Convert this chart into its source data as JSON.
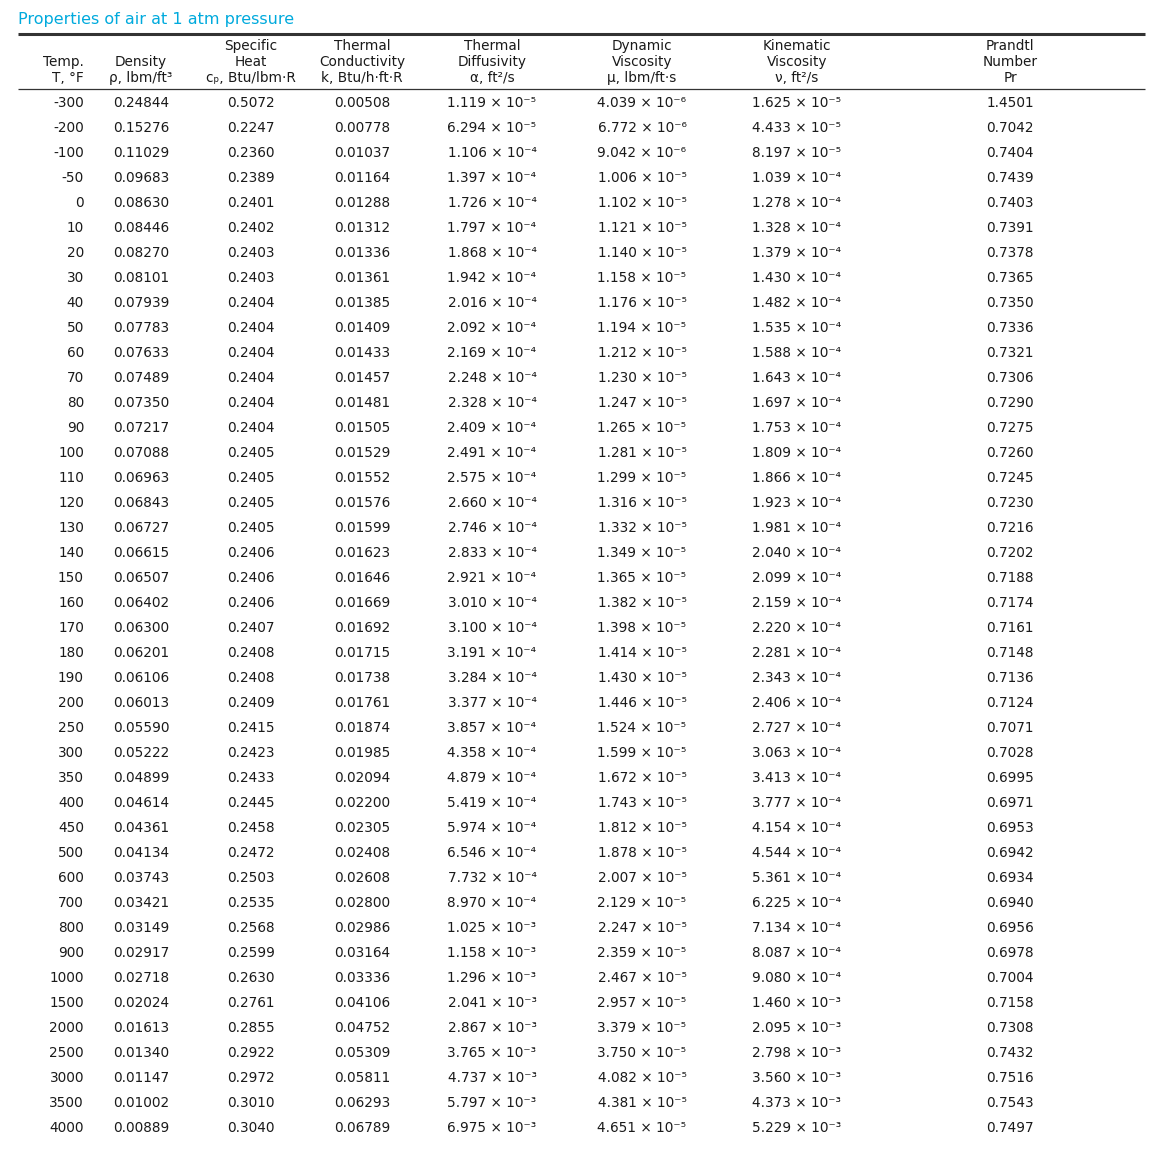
{
  "title": "Properties of air at 1 atm pressure",
  "title_color": "#00AADD",
  "col_headers_line1": [
    "",
    "",
    "Specific",
    "Thermal",
    "Thermal",
    "Dynamic",
    "Kinematic",
    "Prandtl"
  ],
  "col_headers_line2": [
    "Temp.",
    "Density",
    "Heat",
    "Conductivity",
    "Diffusivity",
    "Viscosity",
    "Viscosity",
    "Number"
  ],
  "col_headers_line3": [
    "T, °F",
    "ρ, lbm/ft³",
    "cₚ, Btu/lbm·R",
    "k, Btu/h·ft·R",
    "α, ft²/s",
    "μ, lbm/ft·s",
    "ν, ft²/s",
    "Pr"
  ],
  "rows": [
    [
      "-300",
      "0.24844",
      "0.5072",
      "0.00508",
      "1.119 × 10⁻⁵",
      "4.039 × 10⁻⁶",
      "1.625 × 10⁻⁵",
      "1.4501"
    ],
    [
      "-200",
      "0.15276",
      "0.2247",
      "0.00778",
      "6.294 × 10⁻⁵",
      "6.772 × 10⁻⁶",
      "4.433 × 10⁻⁵",
      "0.7042"
    ],
    [
      "-100",
      "0.11029",
      "0.2360",
      "0.01037",
      "1.106 × 10⁻⁴",
      "9.042 × 10⁻⁶",
      "8.197 × 10⁻⁵",
      "0.7404"
    ],
    [
      "-50",
      "0.09683",
      "0.2389",
      "0.01164",
      "1.397 × 10⁻⁴",
      "1.006 × 10⁻⁵",
      "1.039 × 10⁻⁴",
      "0.7439"
    ],
    [
      "0",
      "0.08630",
      "0.2401",
      "0.01288",
      "1.726 × 10⁻⁴",
      "1.102 × 10⁻⁵",
      "1.278 × 10⁻⁴",
      "0.7403"
    ],
    [
      "10",
      "0.08446",
      "0.2402",
      "0.01312",
      "1.797 × 10⁻⁴",
      "1.121 × 10⁻⁵",
      "1.328 × 10⁻⁴",
      "0.7391"
    ],
    [
      "20",
      "0.08270",
      "0.2403",
      "0.01336",
      "1.868 × 10⁻⁴",
      "1.140 × 10⁻⁵",
      "1.379 × 10⁻⁴",
      "0.7378"
    ],
    [
      "30",
      "0.08101",
      "0.2403",
      "0.01361",
      "1.942 × 10⁻⁴",
      "1.158 × 10⁻⁵",
      "1.430 × 10⁻⁴",
      "0.7365"
    ],
    [
      "40",
      "0.07939",
      "0.2404",
      "0.01385",
      "2.016 × 10⁻⁴",
      "1.176 × 10⁻⁵",
      "1.482 × 10⁻⁴",
      "0.7350"
    ],
    [
      "50",
      "0.07783",
      "0.2404",
      "0.01409",
      "2.092 × 10⁻⁴",
      "1.194 × 10⁻⁵",
      "1.535 × 10⁻⁴",
      "0.7336"
    ],
    [
      "60",
      "0.07633",
      "0.2404",
      "0.01433",
      "2.169 × 10⁻⁴",
      "1.212 × 10⁻⁵",
      "1.588 × 10⁻⁴",
      "0.7321"
    ],
    [
      "70",
      "0.07489",
      "0.2404",
      "0.01457",
      "2.248 × 10⁻⁴",
      "1.230 × 10⁻⁵",
      "1.643 × 10⁻⁴",
      "0.7306"
    ],
    [
      "80",
      "0.07350",
      "0.2404",
      "0.01481",
      "2.328 × 10⁻⁴",
      "1.247 × 10⁻⁵",
      "1.697 × 10⁻⁴",
      "0.7290"
    ],
    [
      "90",
      "0.07217",
      "0.2404",
      "0.01505",
      "2.409 × 10⁻⁴",
      "1.265 × 10⁻⁵",
      "1.753 × 10⁻⁴",
      "0.7275"
    ],
    [
      "100",
      "0.07088",
      "0.2405",
      "0.01529",
      "2.491 × 10⁻⁴",
      "1.281 × 10⁻⁵",
      "1.809 × 10⁻⁴",
      "0.7260"
    ],
    [
      "110",
      "0.06963",
      "0.2405",
      "0.01552",
      "2.575 × 10⁻⁴",
      "1.299 × 10⁻⁵",
      "1.866 × 10⁻⁴",
      "0.7245"
    ],
    [
      "120",
      "0.06843",
      "0.2405",
      "0.01576",
      "2.660 × 10⁻⁴",
      "1.316 × 10⁻⁵",
      "1.923 × 10⁻⁴",
      "0.7230"
    ],
    [
      "130",
      "0.06727",
      "0.2405",
      "0.01599",
      "2.746 × 10⁻⁴",
      "1.332 × 10⁻⁵",
      "1.981 × 10⁻⁴",
      "0.7216"
    ],
    [
      "140",
      "0.06615",
      "0.2406",
      "0.01623",
      "2.833 × 10⁻⁴",
      "1.349 × 10⁻⁵",
      "2.040 × 10⁻⁴",
      "0.7202"
    ],
    [
      "150",
      "0.06507",
      "0.2406",
      "0.01646",
      "2.921 × 10⁻⁴",
      "1.365 × 10⁻⁵",
      "2.099 × 10⁻⁴",
      "0.7188"
    ],
    [
      "160",
      "0.06402",
      "0.2406",
      "0.01669",
      "3.010 × 10⁻⁴",
      "1.382 × 10⁻⁵",
      "2.159 × 10⁻⁴",
      "0.7174"
    ],
    [
      "170",
      "0.06300",
      "0.2407",
      "0.01692",
      "3.100 × 10⁻⁴",
      "1.398 × 10⁻⁵",
      "2.220 × 10⁻⁴",
      "0.7161"
    ],
    [
      "180",
      "0.06201",
      "0.2408",
      "0.01715",
      "3.191 × 10⁻⁴",
      "1.414 × 10⁻⁵",
      "2.281 × 10⁻⁴",
      "0.7148"
    ],
    [
      "190",
      "0.06106",
      "0.2408",
      "0.01738",
      "3.284 × 10⁻⁴",
      "1.430 × 10⁻⁵",
      "2.343 × 10⁻⁴",
      "0.7136"
    ],
    [
      "200",
      "0.06013",
      "0.2409",
      "0.01761",
      "3.377 × 10⁻⁴",
      "1.446 × 10⁻⁵",
      "2.406 × 10⁻⁴",
      "0.7124"
    ],
    [
      "250",
      "0.05590",
      "0.2415",
      "0.01874",
      "3.857 × 10⁻⁴",
      "1.524 × 10⁻⁵",
      "2.727 × 10⁻⁴",
      "0.7071"
    ],
    [
      "300",
      "0.05222",
      "0.2423",
      "0.01985",
      "4.358 × 10⁻⁴",
      "1.599 × 10⁻⁵",
      "3.063 × 10⁻⁴",
      "0.7028"
    ],
    [
      "350",
      "0.04899",
      "0.2433",
      "0.02094",
      "4.879 × 10⁻⁴",
      "1.672 × 10⁻⁵",
      "3.413 × 10⁻⁴",
      "0.6995"
    ],
    [
      "400",
      "0.04614",
      "0.2445",
      "0.02200",
      "5.419 × 10⁻⁴",
      "1.743 × 10⁻⁵",
      "3.777 × 10⁻⁴",
      "0.6971"
    ],
    [
      "450",
      "0.04361",
      "0.2458",
      "0.02305",
      "5.974 × 10⁻⁴",
      "1.812 × 10⁻⁵",
      "4.154 × 10⁻⁴",
      "0.6953"
    ],
    [
      "500",
      "0.04134",
      "0.2472",
      "0.02408",
      "6.546 × 10⁻⁴",
      "1.878 × 10⁻⁵",
      "4.544 × 10⁻⁴",
      "0.6942"
    ],
    [
      "600",
      "0.03743",
      "0.2503",
      "0.02608",
      "7.732 × 10⁻⁴",
      "2.007 × 10⁻⁵",
      "5.361 × 10⁻⁴",
      "0.6934"
    ],
    [
      "700",
      "0.03421",
      "0.2535",
      "0.02800",
      "8.970 × 10⁻⁴",
      "2.129 × 10⁻⁵",
      "6.225 × 10⁻⁴",
      "0.6940"
    ],
    [
      "800",
      "0.03149",
      "0.2568",
      "0.02986",
      "1.025 × 10⁻³",
      "2.247 × 10⁻⁵",
      "7.134 × 10⁻⁴",
      "0.6956"
    ],
    [
      "900",
      "0.02917",
      "0.2599",
      "0.03164",
      "1.158 × 10⁻³",
      "2.359 × 10⁻⁵",
      "8.087 × 10⁻⁴",
      "0.6978"
    ],
    [
      "1000",
      "0.02718",
      "0.2630",
      "0.03336",
      "1.296 × 10⁻³",
      "2.467 × 10⁻⁵",
      "9.080 × 10⁻⁴",
      "0.7004"
    ],
    [
      "1500",
      "0.02024",
      "0.2761",
      "0.04106",
      "2.041 × 10⁻³",
      "2.957 × 10⁻⁵",
      "1.460 × 10⁻³",
      "0.7158"
    ],
    [
      "2000",
      "0.01613",
      "0.2855",
      "0.04752",
      "2.867 × 10⁻³",
      "3.379 × 10⁻⁵",
      "2.095 × 10⁻³",
      "0.7308"
    ],
    [
      "2500",
      "0.01340",
      "0.2922",
      "0.05309",
      "3.765 × 10⁻³",
      "3.750 × 10⁻⁵",
      "2.798 × 10⁻³",
      "0.7432"
    ],
    [
      "3000",
      "0.01147",
      "0.2972",
      "0.05811",
      "4.737 × 10⁻³",
      "4.082 × 10⁻⁵",
      "3.560 × 10⁻³",
      "0.7516"
    ],
    [
      "3500",
      "0.01002",
      "0.3010",
      "0.06293",
      "5.797 × 10⁻³",
      "4.381 × 10⁻⁵",
      "4.373 × 10⁻³",
      "0.7543"
    ],
    [
      "4000",
      "0.00889",
      "0.3040",
      "0.06789",
      "6.975 × 10⁻³",
      "4.651 × 10⁻⁵",
      "5.229 × 10⁻³",
      "0.7497"
    ]
  ],
  "background_color": "#ffffff",
  "text_color": "#1a1a1a",
  "line_color": "#333333",
  "font_size_data": 9.8,
  "font_size_header": 9.8,
  "font_size_title": 11.5,
  "fig_width": 11.55,
  "fig_height": 11.51,
  "dpi": 100
}
